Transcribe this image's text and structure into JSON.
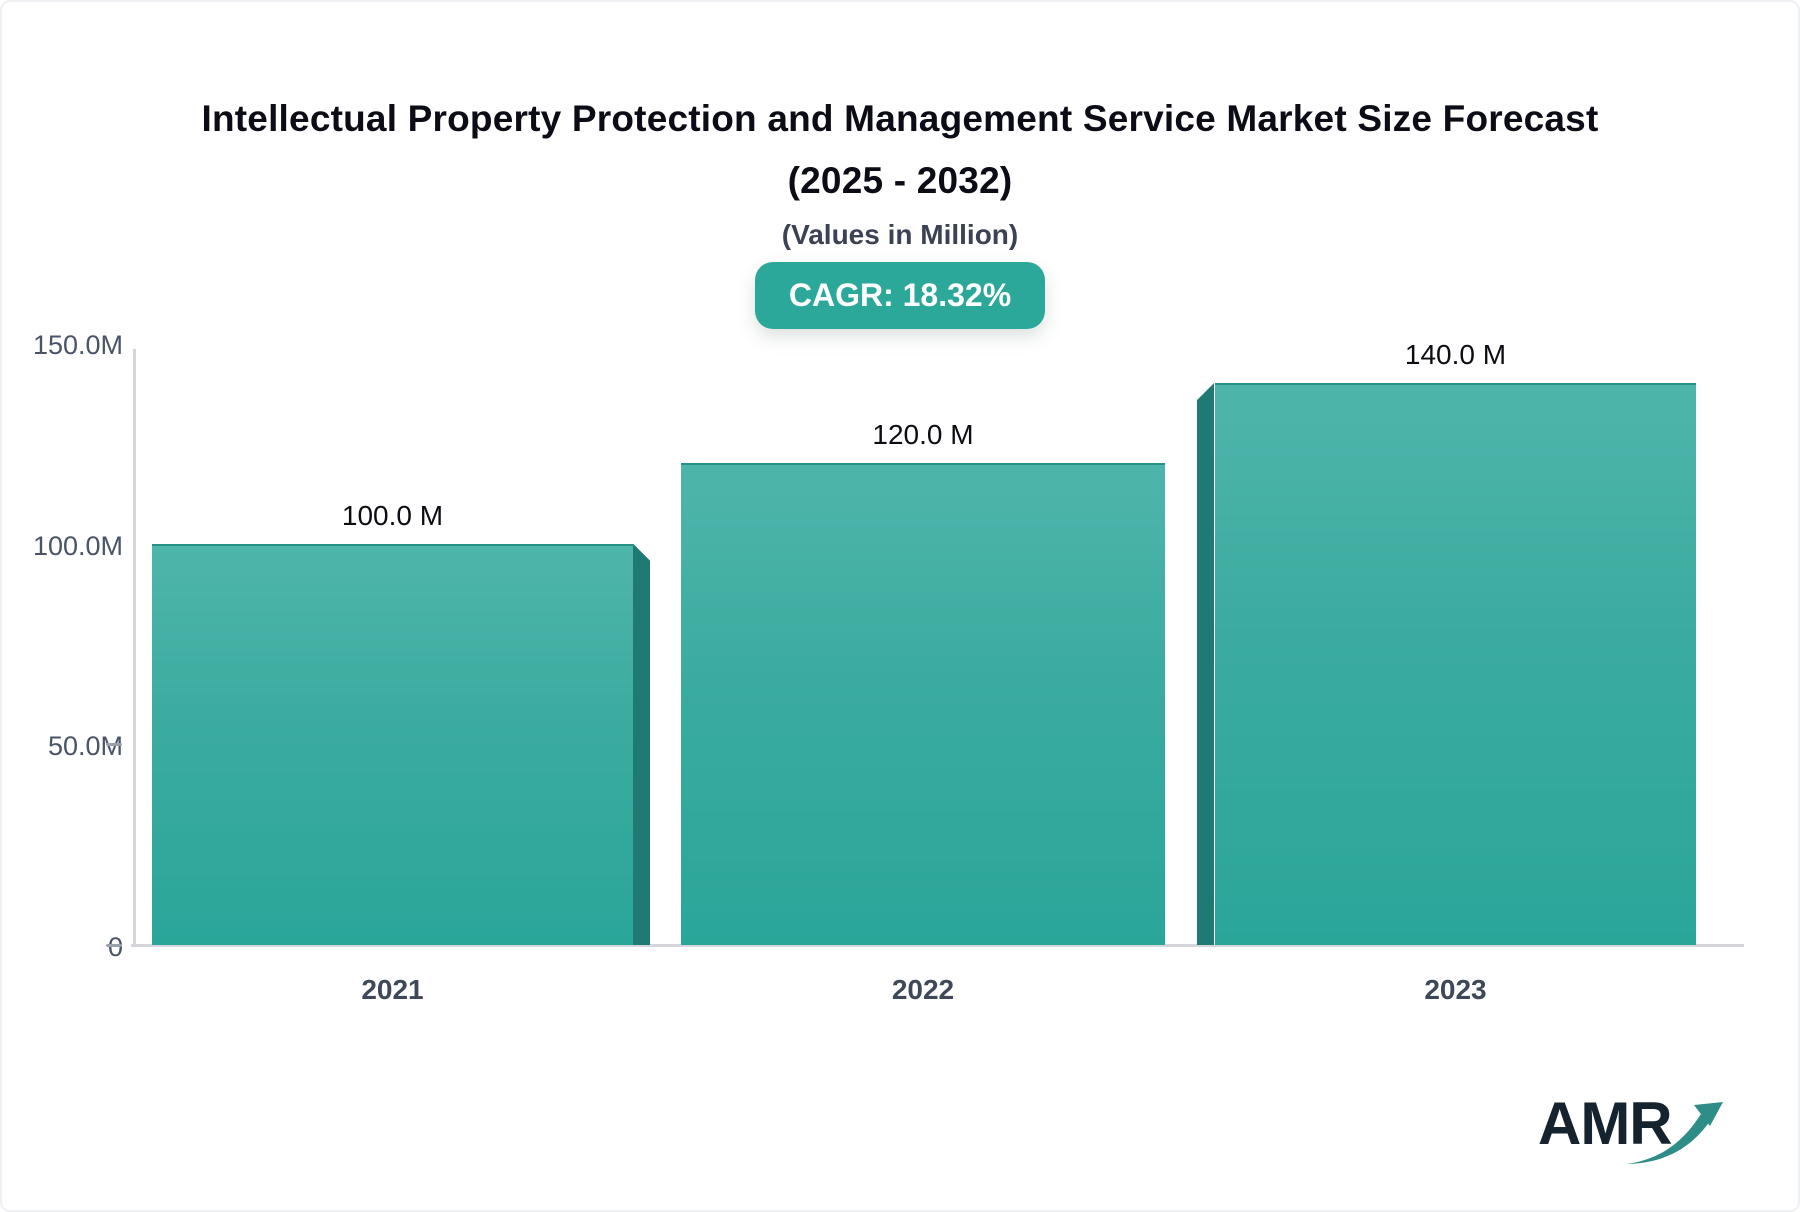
{
  "header": {
    "title_line1": "Intellectual Property Protection and Management Service Market Size Forecast",
    "title_line2": "(2025 - 2032)",
    "subtitle": "(Values in Million)",
    "cagr_badge": "CAGR: 18.32%"
  },
  "chart_data": {
    "type": "bar",
    "title": "Intellectual Property Protection and Management Service Market Size Forecast (2025 - 2032)",
    "subtitle": "(Values in Million)",
    "unit": "Million",
    "cagr_percent": "18.32%",
    "categories": [
      "2021",
      "2022",
      "2023"
    ],
    "values": [
      100.0,
      120.0,
      140.0
    ],
    "bar_labels": [
      "100.0 M",
      "120.0 M",
      "140.0 M"
    ],
    "y_ticks": [
      {
        "label": "150.0M",
        "value": 150
      },
      {
        "label": "100.0M",
        "value": 100
      },
      {
        "label": "50.0M",
        "value": 50
      },
      {
        "label": "0",
        "value": 0
      }
    ],
    "ylim": [
      0,
      150
    ],
    "xlabel": "",
    "ylabel": "",
    "grid": false,
    "legend": false
  },
  "branding": {
    "logo_text": "AMR",
    "logo_arrow_icon": "growth-arrow-icon"
  },
  "colors": {
    "accent_teal": "#2ca89b",
    "bar_gradient_top": "#4fb5ab",
    "bar_gradient_bottom": "#2aa699",
    "bar_side_shadow": "#1e7a72",
    "axis_line": "#d4d6dc",
    "tick_text": "#4a5468",
    "title_text": "#0b0c15",
    "logo_text": "#15232e",
    "logo_arrow": "#2f8d87"
  }
}
